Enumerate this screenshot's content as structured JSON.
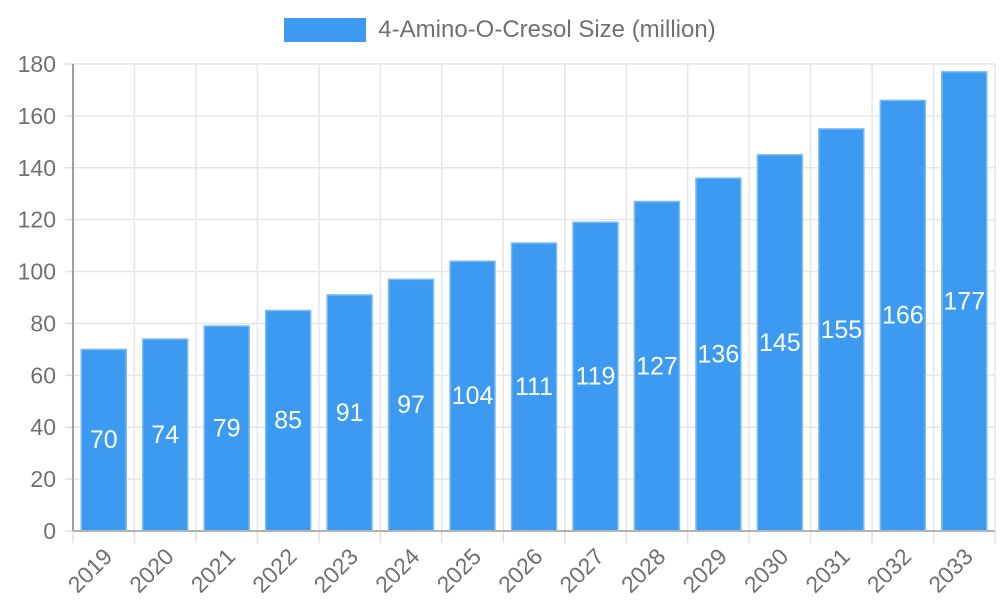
{
  "chart_data": {
    "type": "bar",
    "title": "4-Amino-O-Cresol Size (million)",
    "legend_entries": [
      "4-Amino-O-Cresol Size (million)"
    ],
    "legend_position": "top",
    "categories": [
      "2019",
      "2020",
      "2021",
      "2022",
      "2023",
      "2024",
      "2025",
      "2026",
      "2027",
      "2028",
      "2029",
      "2030",
      "2031",
      "2032",
      "2033"
    ],
    "values": [
      70,
      74,
      79,
      85,
      91,
      97,
      104,
      111,
      119,
      127,
      136,
      145,
      155,
      166,
      177
    ],
    "xlabel": "",
    "ylabel": "",
    "ylim": [
      0,
      180
    ],
    "ytick_step": 20,
    "yticks": [
      0,
      20,
      40,
      60,
      80,
      100,
      120,
      140,
      160,
      180
    ],
    "grid": true,
    "value_label_position": "inside-center",
    "x_label_rotation_deg": 45,
    "colors": {
      "bar": "#3C9BF0",
      "bar_edge": "#7FBCF2",
      "grid": "#E6E6E6",
      "tick": "#E0E0E0",
      "y_axis": "#9E9E9E",
      "x_axis": "#B3B3B3",
      "axis_label_text": "#707070",
      "legend_text": "#707070",
      "value_text": "#FFFFFF"
    }
  }
}
